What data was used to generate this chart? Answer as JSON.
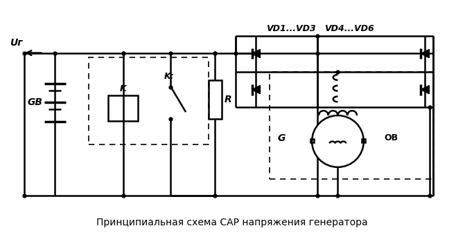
{
  "title": "Принципиальная схема САР напряжения генератора",
  "title_fontsize": 10,
  "bg_color": "#ffffff",
  "line_color": "#000000",
  "label_Ur": "Uг",
  "label_GB": "GB",
  "label_K": "K",
  "label_Kc": "K:",
  "label_R": "R",
  "label_G": "G",
  "label_OB": "OB",
  "label_VD13": "VD1...VD3",
  "label_VD46": "VD4...VD6"
}
